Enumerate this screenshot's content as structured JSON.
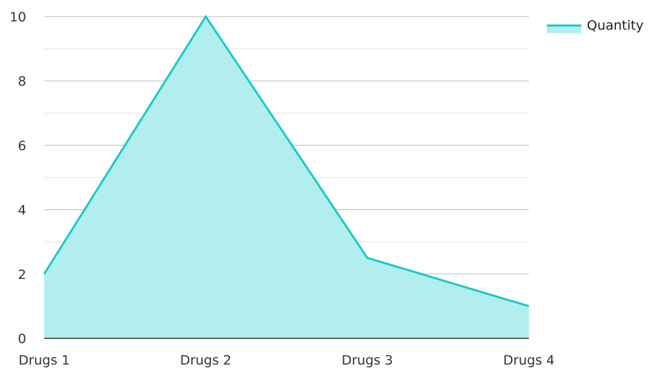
{
  "chart_data": {
    "type": "area",
    "categories": [
      "Drugs 1",
      "Drugs 2",
      "Drugs 3",
      "Drugs 4"
    ],
    "series": [
      {
        "name": "Quantity",
        "values": [
          2,
          10,
          2.5,
          1
        ],
        "color": "#18c9c9",
        "fill": "#b3eeee"
      }
    ],
    "ylim": [
      0,
      10
    ],
    "yticks": [
      "0",
      "2",
      "4",
      "6",
      "8",
      "10"
    ],
    "grid": true,
    "legend": "top-right"
  }
}
